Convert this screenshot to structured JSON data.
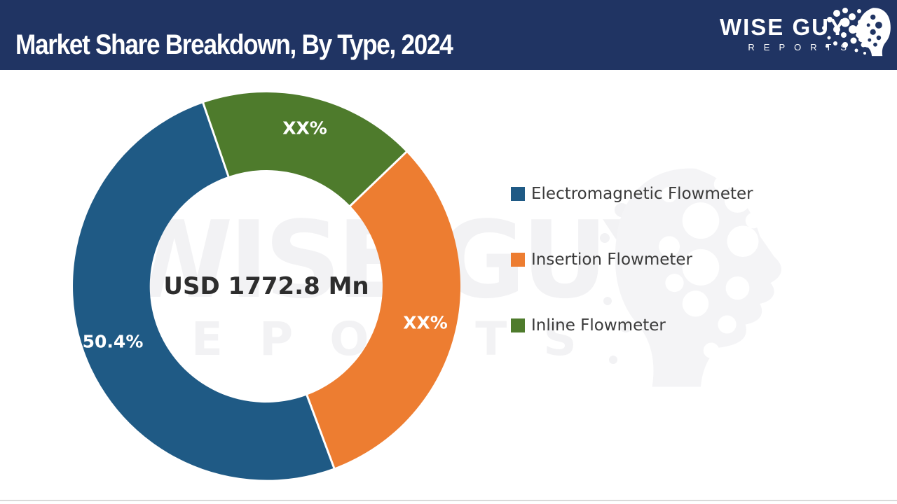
{
  "header": {
    "title": "Market Share Breakdown, By Type, 2024",
    "logo": {
      "line1": "WISE GUY",
      "line2": "REPORTS"
    }
  },
  "watermark": {
    "line1": "WISE GUY",
    "line2": "REPORTS"
  },
  "chart_data": {
    "type": "pie",
    "variant": "donut",
    "title": "Market Share Breakdown, By Type, 2024",
    "center_label": "USD 1772.8 Mn",
    "segments": [
      {
        "name": "Electromagnetic Flowmeter",
        "display_label": "50.4%",
        "share_pct": 50.4,
        "color": "#1f5a85"
      },
      {
        "name": "Insertion Flowmeter",
        "display_label": "XX%",
        "share_pct": 31.5,
        "color": "#ed7d31"
      },
      {
        "name": "Inline Flowmeter",
        "display_label": "XX%",
        "share_pct": 18.1,
        "color": "#4e7b2c"
      }
    ],
    "masked_note": "Insertion and Inline shares shown only as XX% in the chart; 31.5 and 18.1 are arc-size estimates",
    "legend_position": "right",
    "legend_entries": [
      "Electromagnetic Flowmeter",
      "Insertion Flowmeter",
      "Inline Flowmeter"
    ],
    "start_angle_deg": 109,
    "draw_order": [
      2,
      1,
      0
    ],
    "donut_hole": true
  },
  "colors": {
    "header_bg": "#203463",
    "segment_separator": "#ffffff",
    "center_text": "#2d2d2d",
    "legend_text": "#3a3a3a",
    "watermark": "#f2f2f4",
    "hairline": "#d9d9d9"
  }
}
